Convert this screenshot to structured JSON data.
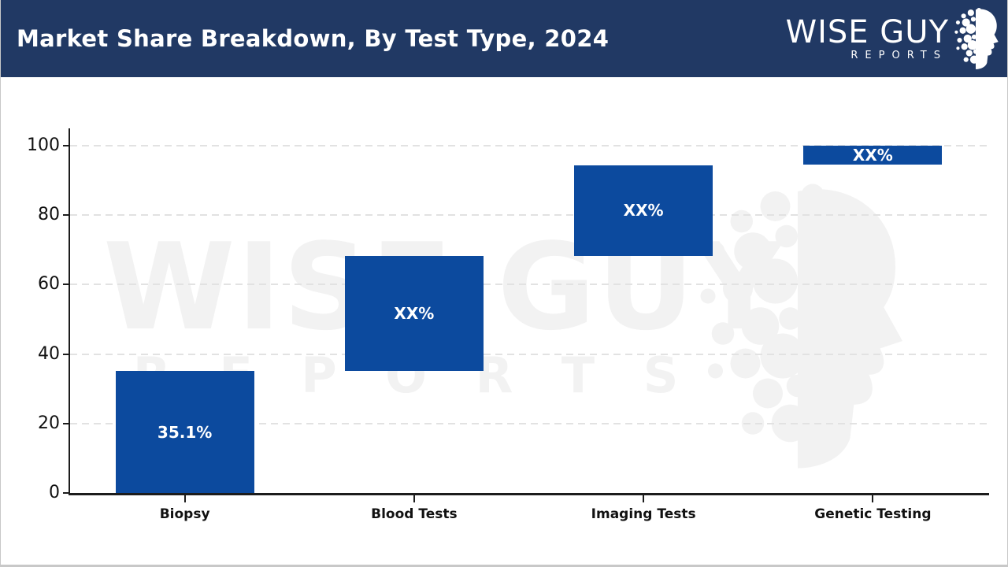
{
  "header": {
    "title": "Market Share Breakdown, By Test Type, 2024",
    "logo_line1": "WISE GUY",
    "logo_line2": "REPORTS"
  },
  "watermark": {
    "line1": "WISE GUY",
    "line2": "R E P O R T S"
  },
  "colors": {
    "header_bg": "#213964",
    "bar_fill": "#0c4a9e",
    "bar_label": "#ffffff",
    "axis": "#1c1c1c",
    "grid": "#e2e2e2",
    "tick_label": "#111111",
    "watermark": "#f2f2f2",
    "page_border": "#c8c8c8"
  },
  "chart_data": {
    "type": "bar",
    "variant": "waterfall-floating-bars",
    "title": "Market Share Breakdown, By Test Type, 2024",
    "categories": [
      "Biopsy",
      "Blood Tests",
      "Imaging Tests",
      "Genetic Testing"
    ],
    "segments": [
      {
        "category": "Biopsy",
        "start": 0,
        "end": 35.1,
        "label": "35.1%"
      },
      {
        "category": "Blood Tests",
        "start": 35.1,
        "end": 68.3,
        "label": "XX%"
      },
      {
        "category": "Imaging Tests",
        "start": 68.3,
        "end": 94.3,
        "label": "XX%"
      },
      {
        "category": "Genetic Testing",
        "start": 94.6,
        "end": 100,
        "label": "XX%"
      }
    ],
    "xlabel": "",
    "ylabel": "",
    "ylim": [
      0,
      105
    ],
    "yticks": [
      0,
      20,
      40,
      60,
      80,
      100
    ],
    "grid": "horizontal-dashed",
    "legend": "none"
  }
}
